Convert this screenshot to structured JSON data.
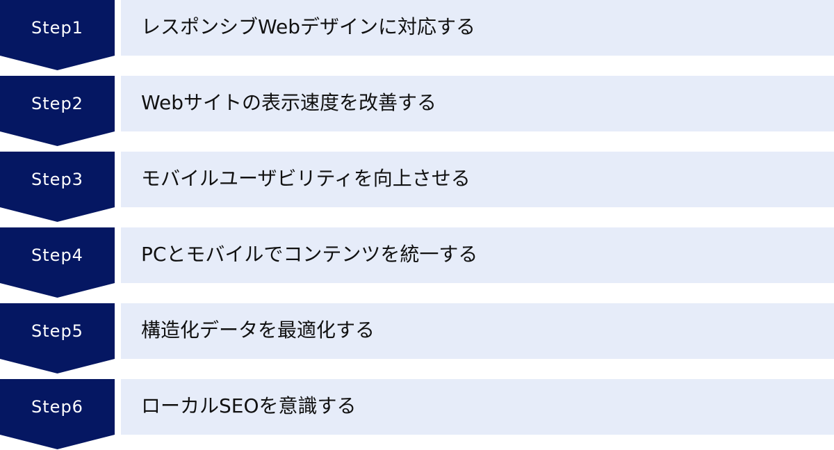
{
  "colors": {
    "step_bg": "#051762",
    "panel_bg": "#e6ecf9",
    "step_text": "#ffffff",
    "panel_text": "#111111"
  },
  "steps": [
    {
      "label": "Step1",
      "text": "レスポンシブWebデザインに対応する"
    },
    {
      "label": "Step2",
      "text": "Webサイトの表示速度を改善する"
    },
    {
      "label": "Step3",
      "text": "モバイルユーザビリティを向上させる"
    },
    {
      "label": "Step4",
      "text": "PCとモバイルでコンテンツを統一する"
    },
    {
      "label": "Step5",
      "text": "構造化データを最適化する"
    },
    {
      "label": "Step6",
      "text": "ローカルSEOを意識する"
    }
  ]
}
